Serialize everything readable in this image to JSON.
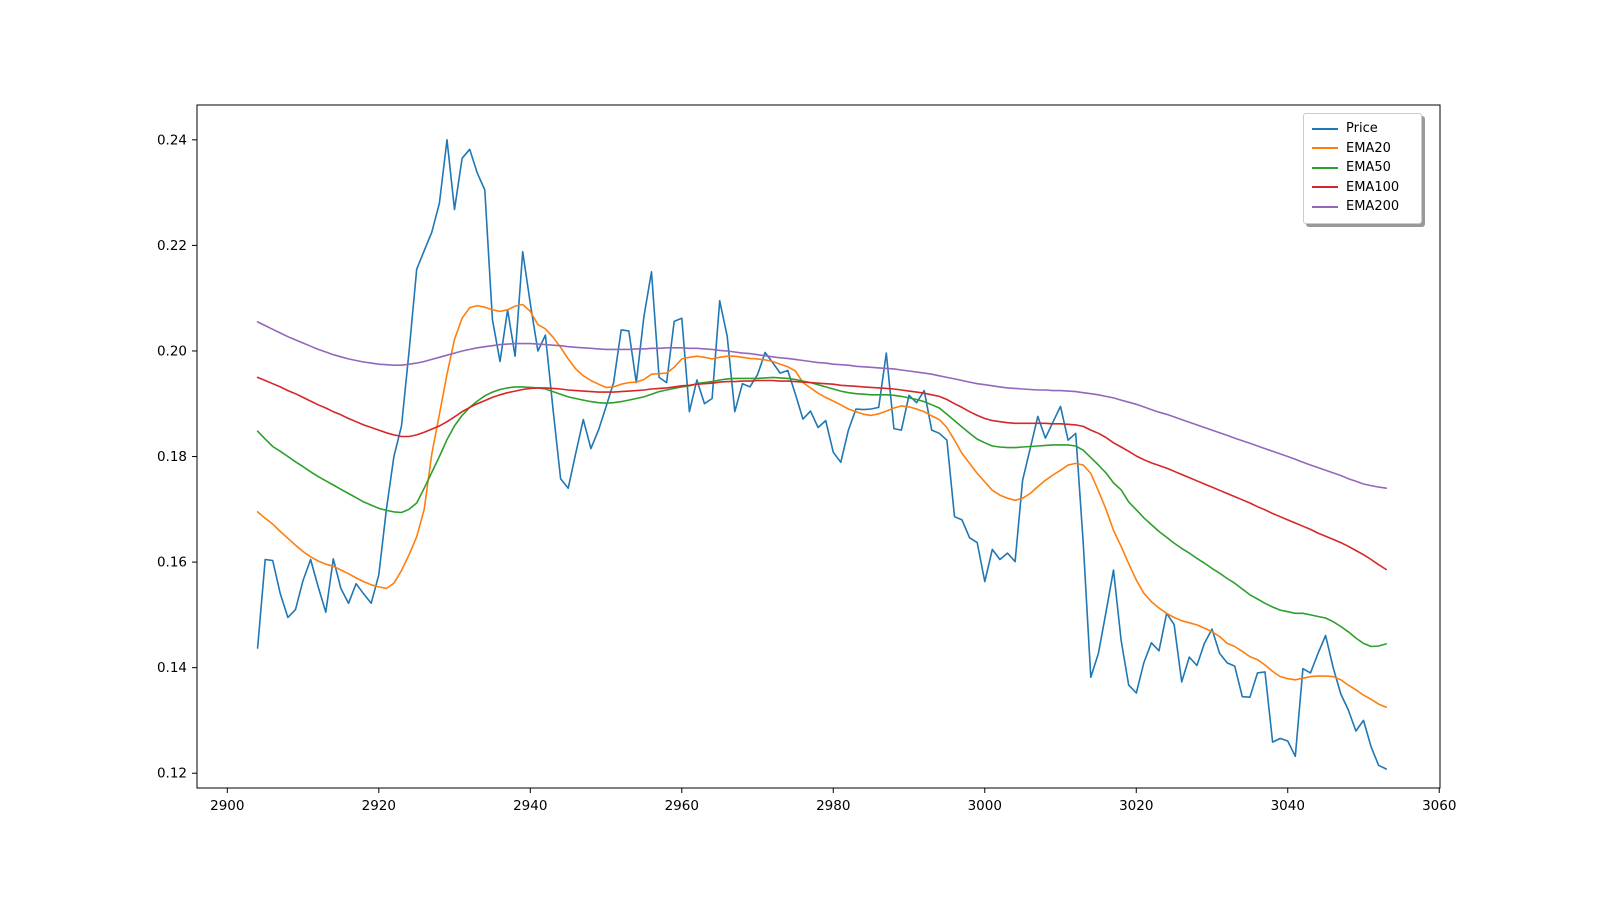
{
  "chart_data": {
    "type": "line",
    "title": "",
    "xlabel": "",
    "ylabel": "",
    "grid": false,
    "legend_position": "upper right",
    "xlim": [
      2896.0,
      3060.1
    ],
    "ylim": [
      0.1172,
      0.2466
    ],
    "xticks": [
      2900,
      2920,
      2940,
      2960,
      2980,
      3000,
      3020,
      3040,
      3060
    ],
    "yticks": [
      0.12,
      0.14,
      0.16,
      0.18,
      0.2,
      0.22,
      0.24
    ],
    "x": {
      "start": 2904,
      "step": 1,
      "count": 150
    },
    "series": [
      {
        "name": "Price",
        "color": "#1f77b4",
        "values": [
          0.1437,
          0.1605,
          0.1603,
          0.154,
          0.1495,
          0.151,
          0.1565,
          0.1605,
          0.1553,
          0.1505,
          0.1606,
          0.155,
          0.1522,
          0.1559,
          0.154,
          0.1522,
          0.1576,
          0.17,
          0.18,
          0.1858,
          0.2,
          0.2155,
          0.219,
          0.2225,
          0.228,
          0.24,
          0.2268,
          0.2365,
          0.2382,
          0.2337,
          0.2305,
          0.206,
          0.198,
          0.2078,
          0.199,
          0.2188,
          0.209,
          0.2,
          0.203,
          0.189,
          0.1758,
          0.174,
          0.1806,
          0.187,
          0.1815,
          0.185,
          0.1894,
          0.194,
          0.204,
          0.2038,
          0.194,
          0.2065,
          0.215,
          0.195,
          0.194,
          0.2056,
          0.2062,
          0.1885,
          0.1945,
          0.19,
          0.191,
          0.2095,
          0.2028,
          0.1885,
          0.1938,
          0.1932,
          0.1955,
          0.1997,
          0.1978,
          0.1958,
          0.1963,
          0.1918,
          0.1871,
          0.1886,
          0.1855,
          0.1868,
          0.1808,
          0.1789,
          0.185,
          0.189,
          0.1889,
          0.189,
          0.1893,
          0.1996,
          0.1853,
          0.185,
          0.1916,
          0.1902,
          0.1925,
          0.185,
          0.1844,
          0.1831,
          0.1686,
          0.168,
          0.1646,
          0.1637,
          0.1563,
          0.1624,
          0.1605,
          0.1617,
          0.1601,
          0.1755,
          0.1815,
          0.1876,
          0.1835,
          0.1865,
          0.1895,
          0.1831,
          0.1844,
          0.1637,
          0.1382,
          0.1427,
          0.1505,
          0.1585,
          0.1452,
          0.1367,
          0.1352,
          0.1409,
          0.1447,
          0.1432,
          0.1503,
          0.1482,
          0.1373,
          0.142,
          0.1404,
          0.1446,
          0.1473,
          0.1427,
          0.1409,
          0.1403,
          0.1345,
          0.1344,
          0.139,
          0.1392,
          0.1259,
          0.1266,
          0.1261,
          0.1232,
          0.1398,
          0.139,
          0.1427,
          0.1461,
          0.14,
          0.135,
          0.132,
          0.128,
          0.13,
          0.125,
          0.1215,
          0.1208
        ]
      },
      {
        "name": "EMA20",
        "color": "#ff7f0e",
        "values": [
          0.1695,
          0.1683,
          0.1672,
          0.1658,
          0.1645,
          0.1632,
          0.162,
          0.161,
          0.1602,
          0.1596,
          0.1592,
          0.1585,
          0.1578,
          0.157,
          0.1563,
          0.1557,
          0.1553,
          0.155,
          0.156,
          0.1584,
          0.1614,
          0.1648,
          0.17,
          0.1805,
          0.188,
          0.1956,
          0.2022,
          0.2062,
          0.2082,
          0.2086,
          0.2083,
          0.2078,
          0.2075,
          0.2078,
          0.2085,
          0.2088,
          0.2075,
          0.205,
          0.2042,
          0.2026,
          0.2007,
          0.1985,
          0.1966,
          0.1953,
          0.1944,
          0.1937,
          0.1931,
          0.1932,
          0.1937,
          0.194,
          0.1941,
          0.1946,
          0.1956,
          0.1957,
          0.1958,
          0.1969,
          0.1985,
          0.1988,
          0.199,
          0.1988,
          0.1985,
          0.1988,
          0.199,
          0.199,
          0.1988,
          0.1986,
          0.1985,
          0.1983,
          0.198,
          0.1975,
          0.197,
          0.1962,
          0.194,
          0.193,
          0.192,
          0.1912,
          0.1905,
          0.1898,
          0.189,
          0.1885,
          0.188,
          0.1878,
          0.1881,
          0.1886,
          0.1892,
          0.1896,
          0.1894,
          0.189,
          0.1885,
          0.1877,
          0.187,
          0.1855,
          0.1831,
          0.1806,
          0.1787,
          0.1768,
          0.1752,
          0.1736,
          0.1727,
          0.1721,
          0.1717,
          0.1721,
          0.173,
          0.1743,
          0.1755,
          0.1765,
          0.1774,
          0.1784,
          0.1787,
          0.1784,
          0.1768,
          0.1735,
          0.17,
          0.166,
          0.163,
          0.1597,
          0.1566,
          0.1541,
          0.1525,
          0.1513,
          0.1503,
          0.1495,
          0.1489,
          0.1485,
          0.1481,
          0.1475,
          0.1468,
          0.1459,
          0.1446,
          0.144,
          0.1431,
          0.1421,
          0.1415,
          0.1405,
          0.1393,
          0.1383,
          0.1379,
          0.1377,
          0.138,
          0.1383,
          0.1384,
          0.1384,
          0.1383,
          0.1377,
          0.1367,
          0.1358,
          0.1348,
          0.134,
          0.1331,
          0.1325
        ]
      },
      {
        "name": "EMA50",
        "color": "#2ca02c",
        "values": [
          0.1848,
          0.1833,
          0.1819,
          0.181,
          0.18,
          0.179,
          0.1781,
          0.1771,
          0.1762,
          0.1754,
          0.1746,
          0.1738,
          0.173,
          0.1722,
          0.1714,
          0.1708,
          0.1702,
          0.1698,
          0.1695,
          0.1694,
          0.17,
          0.1712,
          0.174,
          0.177,
          0.18,
          0.1832,
          0.1858,
          0.1878,
          0.1893,
          0.1905,
          0.1915,
          0.1922,
          0.1927,
          0.193,
          0.1932,
          0.1932,
          0.1931,
          0.193,
          0.1928,
          0.1923,
          0.1918,
          0.1913,
          0.191,
          0.1907,
          0.1904,
          0.1902,
          0.1901,
          0.1902,
          0.1904,
          0.1907,
          0.191,
          0.1913,
          0.1918,
          0.1923,
          0.1926,
          0.1929,
          0.1932,
          0.1934,
          0.1938,
          0.194,
          0.1942,
          0.1945,
          0.1947,
          0.1948,
          0.1948,
          0.1948,
          0.1948,
          0.1949,
          0.195,
          0.1949,
          0.1948,
          0.1946,
          0.1943,
          0.194,
          0.1936,
          0.1932,
          0.1928,
          0.1924,
          0.1921,
          0.1919,
          0.1918,
          0.1917,
          0.1917,
          0.1917,
          0.1916,
          0.1914,
          0.1911,
          0.1908,
          0.1904,
          0.1898,
          0.1892,
          0.188,
          0.1868,
          0.1856,
          0.1844,
          0.1833,
          0.1826,
          0.182,
          0.1818,
          0.1817,
          0.1817,
          0.1818,
          0.1819,
          0.182,
          0.1821,
          0.1822,
          0.1822,
          0.1822,
          0.182,
          0.1812,
          0.1798,
          0.1784,
          0.1769,
          0.175,
          0.1737,
          0.1714,
          0.1699,
          0.1684,
          0.1671,
          0.1658,
          0.1647,
          0.1636,
          0.1626,
          0.1617,
          0.1607,
          0.1598,
          0.1588,
          0.1579,
          0.1569,
          0.156,
          0.1549,
          0.1538,
          0.153,
          0.1522,
          0.1515,
          0.1509,
          0.1506,
          0.1503,
          0.1503,
          0.15,
          0.1497,
          0.1494,
          0.1487,
          0.1478,
          0.1468,
          0.1456,
          0.1446,
          0.144,
          0.1441,
          0.1445
        ]
      },
      {
        "name": "EMA100",
        "color": "#d62728",
        "values": [
          0.195,
          0.1944,
          0.1938,
          0.1932,
          0.1925,
          0.1919,
          0.1912,
          0.1905,
          0.1898,
          0.1892,
          0.1885,
          0.1879,
          0.1872,
          0.1866,
          0.186,
          0.1855,
          0.185,
          0.1845,
          0.1841,
          0.1838,
          0.1838,
          0.1841,
          0.1846,
          0.1852,
          0.1858,
          0.1866,
          0.1875,
          0.1885,
          0.1893,
          0.19,
          0.1906,
          0.1912,
          0.1917,
          0.1921,
          0.1924,
          0.1927,
          0.1929,
          0.193,
          0.193,
          0.1929,
          0.1928,
          0.1926,
          0.1925,
          0.1924,
          0.1923,
          0.1922,
          0.1922,
          0.1922,
          0.1923,
          0.1924,
          0.1925,
          0.1926,
          0.1928,
          0.1929,
          0.193,
          0.1932,
          0.1934,
          0.1935,
          0.1937,
          0.1938,
          0.1939,
          0.1941,
          0.1942,
          0.1942,
          0.1943,
          0.1943,
          0.1944,
          0.1944,
          0.1944,
          0.1943,
          0.1943,
          0.1942,
          0.1941,
          0.194,
          0.1939,
          0.1938,
          0.1937,
          0.1935,
          0.1934,
          0.1933,
          0.1932,
          0.1931,
          0.193,
          0.1929,
          0.1928,
          0.1926,
          0.1924,
          0.1922,
          0.192,
          0.1917,
          0.1914,
          0.1908,
          0.19,
          0.1893,
          0.1885,
          0.1878,
          0.1872,
          0.1868,
          0.1866,
          0.1864,
          0.1863,
          0.1863,
          0.1863,
          0.1863,
          0.1863,
          0.1862,
          0.1862,
          0.1861,
          0.186,
          0.1857,
          0.185,
          0.1844,
          0.1836,
          0.1826,
          0.1818,
          0.181,
          0.1801,
          0.1794,
          0.1788,
          0.1783,
          0.1778,
          0.1772,
          0.1766,
          0.176,
          0.1754,
          0.1748,
          0.1742,
          0.1736,
          0.173,
          0.1724,
          0.1718,
          0.1712,
          0.1705,
          0.1699,
          0.1692,
          0.1686,
          0.168,
          0.1674,
          0.1668,
          0.1662,
          0.1655,
          0.1649,
          0.1643,
          0.1637,
          0.163,
          0.1622,
          0.1614,
          0.1605,
          0.1595,
          0.1586
        ]
      },
      {
        "name": "EMA200",
        "color": "#9467bd",
        "values": [
          0.2055,
          0.2048,
          0.2041,
          0.2034,
          0.2027,
          0.2021,
          0.2015,
          0.2009,
          0.2003,
          0.1998,
          0.1993,
          0.1989,
          0.1985,
          0.1982,
          0.1979,
          0.1977,
          0.1975,
          0.1974,
          0.1973,
          0.1973,
          0.1975,
          0.1977,
          0.198,
          0.1984,
          0.1988,
          0.1992,
          0.1996,
          0.2,
          0.2003,
          0.2006,
          0.2008,
          0.201,
          0.2012,
          0.2013,
          0.2014,
          0.2014,
          0.2014,
          0.2013,
          0.2012,
          0.2011,
          0.201,
          0.2008,
          0.2007,
          0.2006,
          0.2005,
          0.2004,
          0.2003,
          0.2003,
          0.2003,
          0.2003,
          0.2004,
          0.2004,
          0.2005,
          0.2005,
          0.2006,
          0.2006,
          0.2006,
          0.2005,
          0.2005,
          0.2004,
          0.2003,
          0.2001,
          0.2,
          0.1998,
          0.1996,
          0.1995,
          0.1993,
          0.1991,
          0.1989,
          0.1987,
          0.1986,
          0.1984,
          0.1982,
          0.198,
          0.1978,
          0.1977,
          0.1975,
          0.1974,
          0.1973,
          0.1971,
          0.197,
          0.1969,
          0.1968,
          0.1967,
          0.1966,
          0.1964,
          0.1962,
          0.196,
          0.1958,
          0.1956,
          0.1953,
          0.195,
          0.1947,
          0.1944,
          0.1941,
          0.1938,
          0.1936,
          0.1934,
          0.1932,
          0.193,
          0.1929,
          0.1928,
          0.1927,
          0.1926,
          0.1926,
          0.1925,
          0.1925,
          0.1924,
          0.1923,
          0.1921,
          0.1919,
          0.1917,
          0.1914,
          0.1911,
          0.1907,
          0.1903,
          0.1899,
          0.1894,
          0.1889,
          0.1884,
          0.188,
          0.1875,
          0.187,
          0.1865,
          0.186,
          0.1855,
          0.185,
          0.1845,
          0.184,
          0.1835,
          0.183,
          0.1825,
          0.182,
          0.1815,
          0.181,
          0.1805,
          0.18,
          0.1795,
          0.1789,
          0.1784,
          0.1779,
          0.1774,
          0.1769,
          0.1764,
          0.1758,
          0.1753,
          0.1748,
          0.1745,
          0.1742,
          0.174
        ]
      }
    ]
  },
  "legend": {
    "entries": [
      "Price",
      "EMA20",
      "EMA50",
      "EMA100",
      "EMA200"
    ]
  },
  "style": {
    "spine_color": "#000000",
    "background": "#ffffff",
    "tick_label_color": "#000000",
    "legend_border_color": "#cccccc",
    "legend_shadow_color": "#999999"
  }
}
